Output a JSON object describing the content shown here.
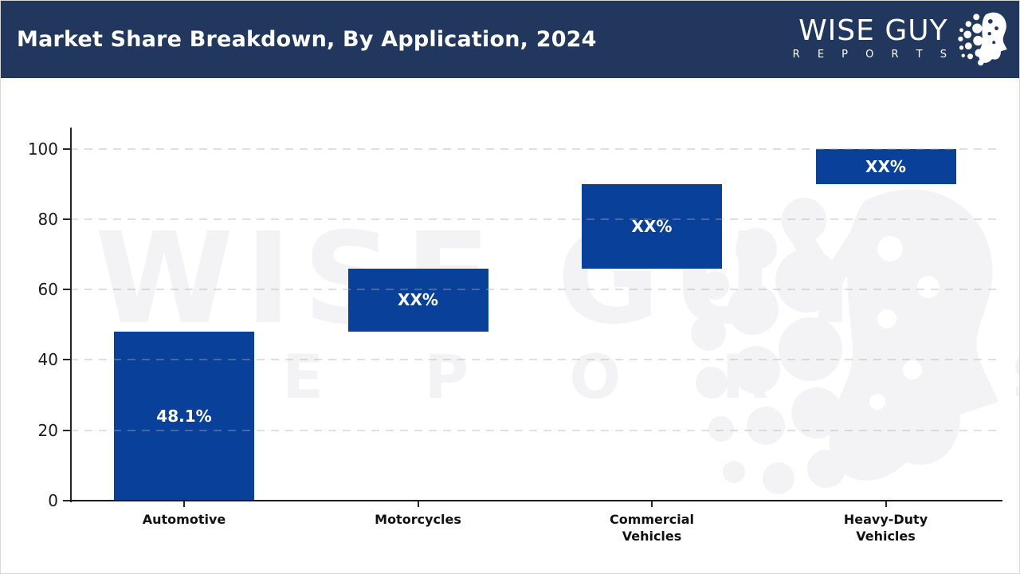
{
  "header": {
    "title": "Market Share Breakdown, By Application, 2024",
    "logo": {
      "brand_line1": "WISE GUY",
      "brand_line2": "R E P O R T S"
    }
  },
  "watermark": {
    "line1": "WISE GUY",
    "line2": "R E P O R T S"
  },
  "colors": {
    "header_bg": "#22375e",
    "bar": "#08409a",
    "axis": "#262626",
    "grid": "#acacac",
    "value_label": "#ffffff",
    "tick_label": "#1a1a1a"
  },
  "chart_data": {
    "type": "bar",
    "subtype": "waterfall",
    "title": "Market Share Breakdown, By Application, 2024",
    "xlabel": "",
    "ylabel": "",
    "ylim": [
      0,
      100
    ],
    "yticks": [
      0,
      20,
      40,
      60,
      80,
      100
    ],
    "grid": "horizontal-dashed",
    "legend": "none",
    "categories": [
      "Automotive",
      "Motorcycles",
      "Commercial Vehicles",
      "Heavy-Duty Vehicles"
    ],
    "x_tick_labels_display": [
      "Automotive",
      "Motorcycles",
      "Commercial\nVehicles",
      "Heavy-Duty\nVehicles"
    ],
    "segments": [
      {
        "category": "Automotive",
        "start": 0,
        "end": 48.1,
        "value": 48.1,
        "value_label": "48.1%"
      },
      {
        "category": "Motorcycles",
        "start": 48.1,
        "end": 66,
        "value": 17.9,
        "value_label": "XX%"
      },
      {
        "category": "Commercial Vehicles",
        "start": 66,
        "end": 90,
        "value": 24,
        "value_label": "XX%"
      },
      {
        "category": "Heavy-Duty Vehicles",
        "start": 90,
        "end": 100,
        "value": 10,
        "value_label": "XX%"
      }
    ]
  }
}
